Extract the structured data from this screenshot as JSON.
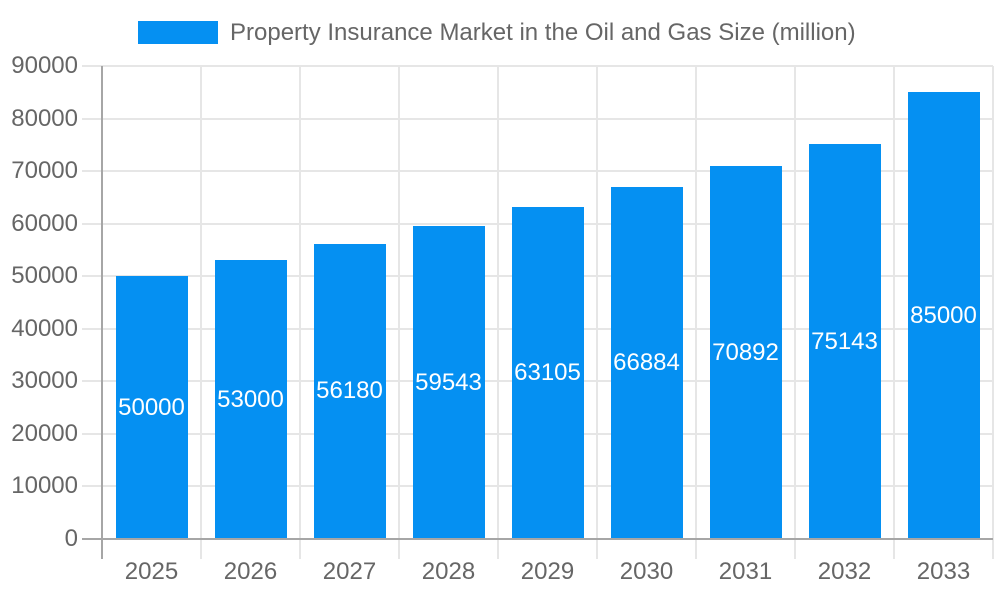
{
  "legend": {
    "label": "Property Insurance Market in the Oil and Gas Size (million)"
  },
  "colors": {
    "bar": "#0590f2",
    "grid": "#e6e6e6",
    "axis": "#a6a6a6",
    "tick_label": "#666666",
    "legend_text": "#666666",
    "bar_label": "#ffffff",
    "background": "#ffffff"
  },
  "chart_data": {
    "type": "bar",
    "title": "Property Insurance Market in the Oil and Gas Size (million)",
    "categories": [
      "2025",
      "2026",
      "2027",
      "2028",
      "2029",
      "2030",
      "2031",
      "2032",
      "2033"
    ],
    "values": [
      50000,
      53000,
      56180,
      59543,
      63105,
      66884,
      70892,
      75143,
      85000
    ],
    "bar_labels": [
      "50000",
      "53000",
      "56180",
      "59543",
      "63105",
      "66884",
      "70892",
      "75143",
      "85000"
    ],
    "xlabel": "",
    "ylabel": "",
    "ylim": [
      0,
      90000
    ],
    "yticks": [
      0,
      10000,
      20000,
      30000,
      40000,
      50000,
      60000,
      70000,
      80000,
      90000
    ],
    "ytick_labels": [
      "0",
      "10000",
      "20000",
      "30000",
      "40000",
      "50000",
      "60000",
      "70000",
      "80000",
      "90000"
    ],
    "grid": true,
    "legend_position": "top",
    "value_label_position": "center-of-bar"
  }
}
